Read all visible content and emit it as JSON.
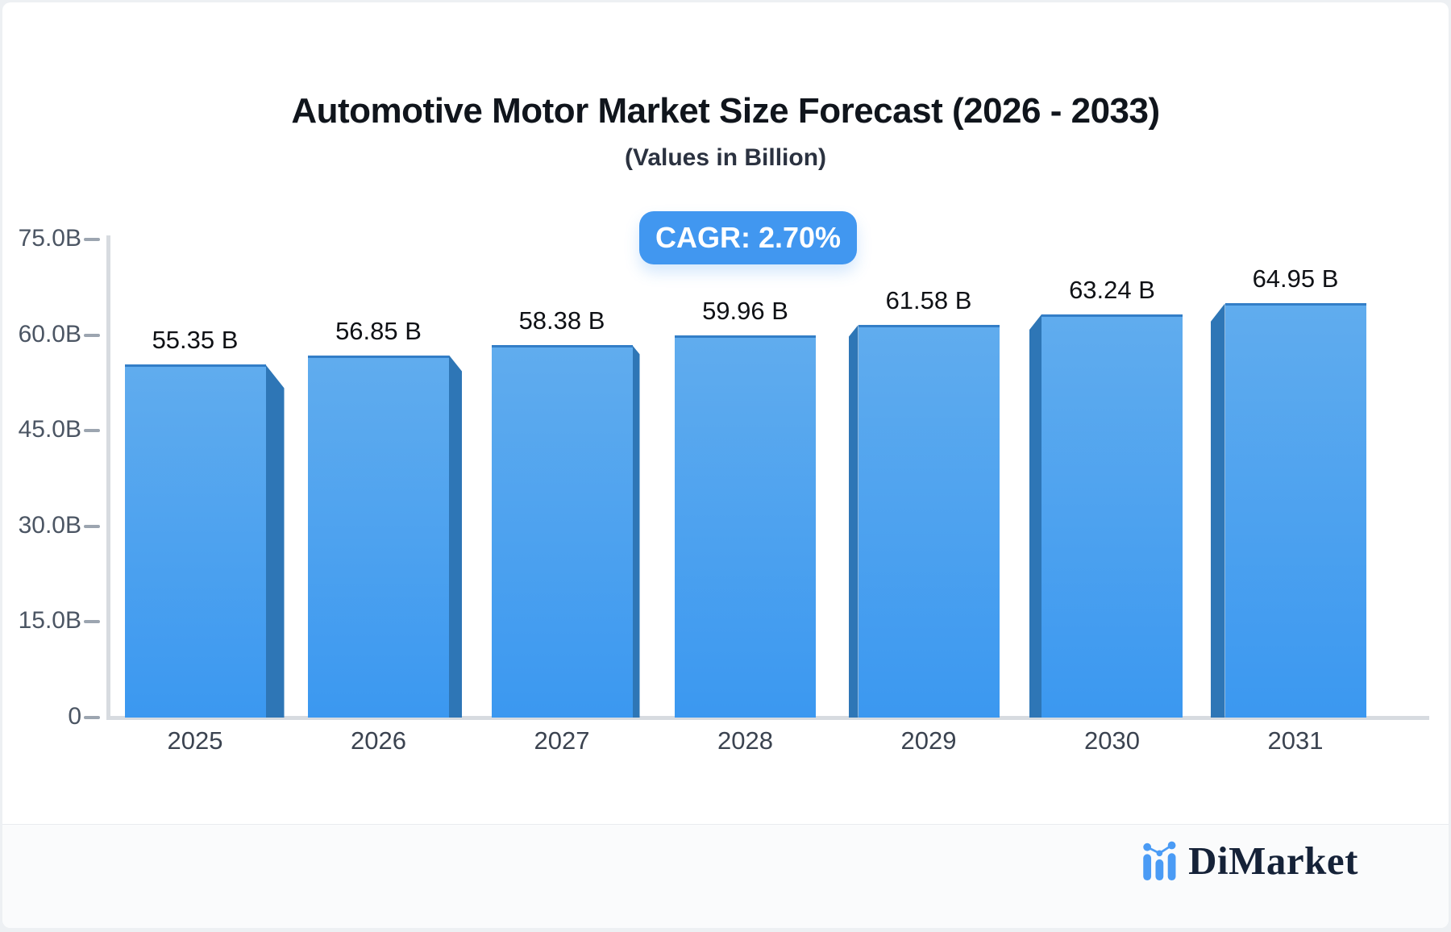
{
  "header": {
    "title": "Automotive Motor Market Size Forecast (2026 - 2033)",
    "subtitle": "(Values in Billion)"
  },
  "badge": {
    "label": "CAGR: 2.70%"
  },
  "chart_data": {
    "type": "bar",
    "categories": [
      "2025",
      "2026",
      "2027",
      "2028",
      "2029",
      "2030",
      "2031"
    ],
    "values": [
      55.35,
      56.85,
      58.38,
      59.96,
      61.58,
      63.24,
      64.95
    ],
    "value_labels": [
      "55.35 B",
      "56.85 B",
      "58.38 B",
      "59.96 B",
      "61.58 B",
      "63.24 B",
      "64.95 B"
    ],
    "ylabel": "Values in Billion",
    "xlabel": "",
    "ylim": [
      0,
      75
    ],
    "y_ticks": {
      "values": [
        0,
        15,
        30,
        45,
        60,
        75
      ],
      "labels": [
        "0",
        "15.0B",
        "30.0B",
        "45.0B",
        "60.0B",
        "75.0B"
      ]
    },
    "grid": false,
    "legend": "none",
    "style": "pseudo-3d bars with central perspective side faces"
  },
  "logo": {
    "text": "DiMarket"
  },
  "colors": {
    "accent": "#4197f0",
    "bar_face_top": "#60acee",
    "bar_face_bottom": "#3b98f0",
    "bar_side": "#2e76b6",
    "axis": "#d7dbe0",
    "logo_navy": "#152238",
    "logo_blue": "#4a9bf5"
  }
}
